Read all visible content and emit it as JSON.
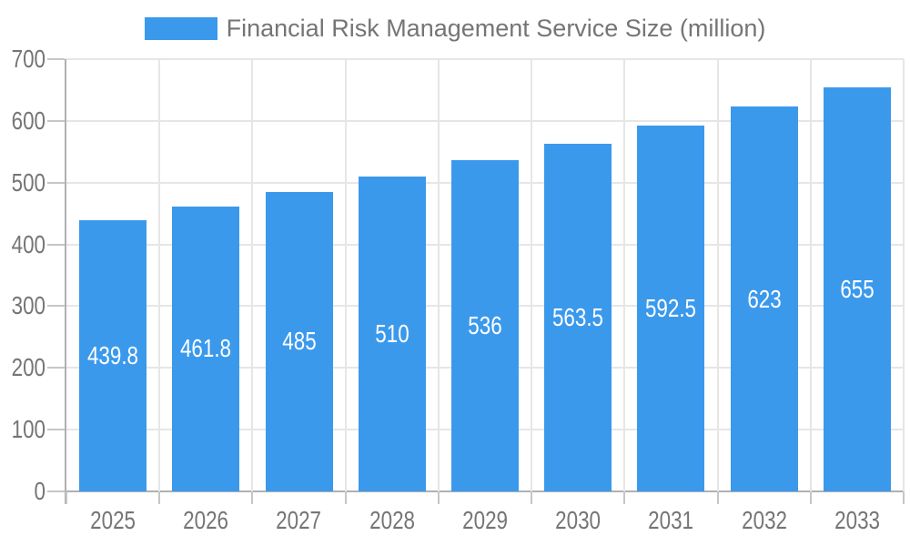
{
  "chart_data": {
    "type": "bar",
    "title": "Financial Risk Management Service Size (million)",
    "legend": {
      "position": "top-center",
      "label": "Financial Risk Management Service Size (million)"
    },
    "categories": [
      "2025",
      "2026",
      "2027",
      "2028",
      "2029",
      "2030",
      "2031",
      "2032",
      "2033"
    ],
    "values": [
      439.8,
      461.8,
      485,
      510,
      536,
      563.5,
      592.5,
      623,
      655
    ],
    "bar_value_labels": [
      "439.8",
      "461.8",
      "485",
      "510",
      "536",
      "563.5",
      "592.5",
      "623",
      "655"
    ],
    "xlabel": "",
    "ylabel": "",
    "ylim": [
      0,
      700
    ],
    "yticks": [
      0,
      100,
      200,
      300,
      400,
      500,
      600,
      700
    ],
    "grid": true,
    "legend_visible": true,
    "colors": {
      "bar": "#3b99ec",
      "bar_label": "#ffffff",
      "axis_text": "#757575",
      "axis_line": "#b0b0b0",
      "tick": "#c6c6c6",
      "gridline": "#e6e6e6",
      "background": "#ffffff"
    }
  }
}
